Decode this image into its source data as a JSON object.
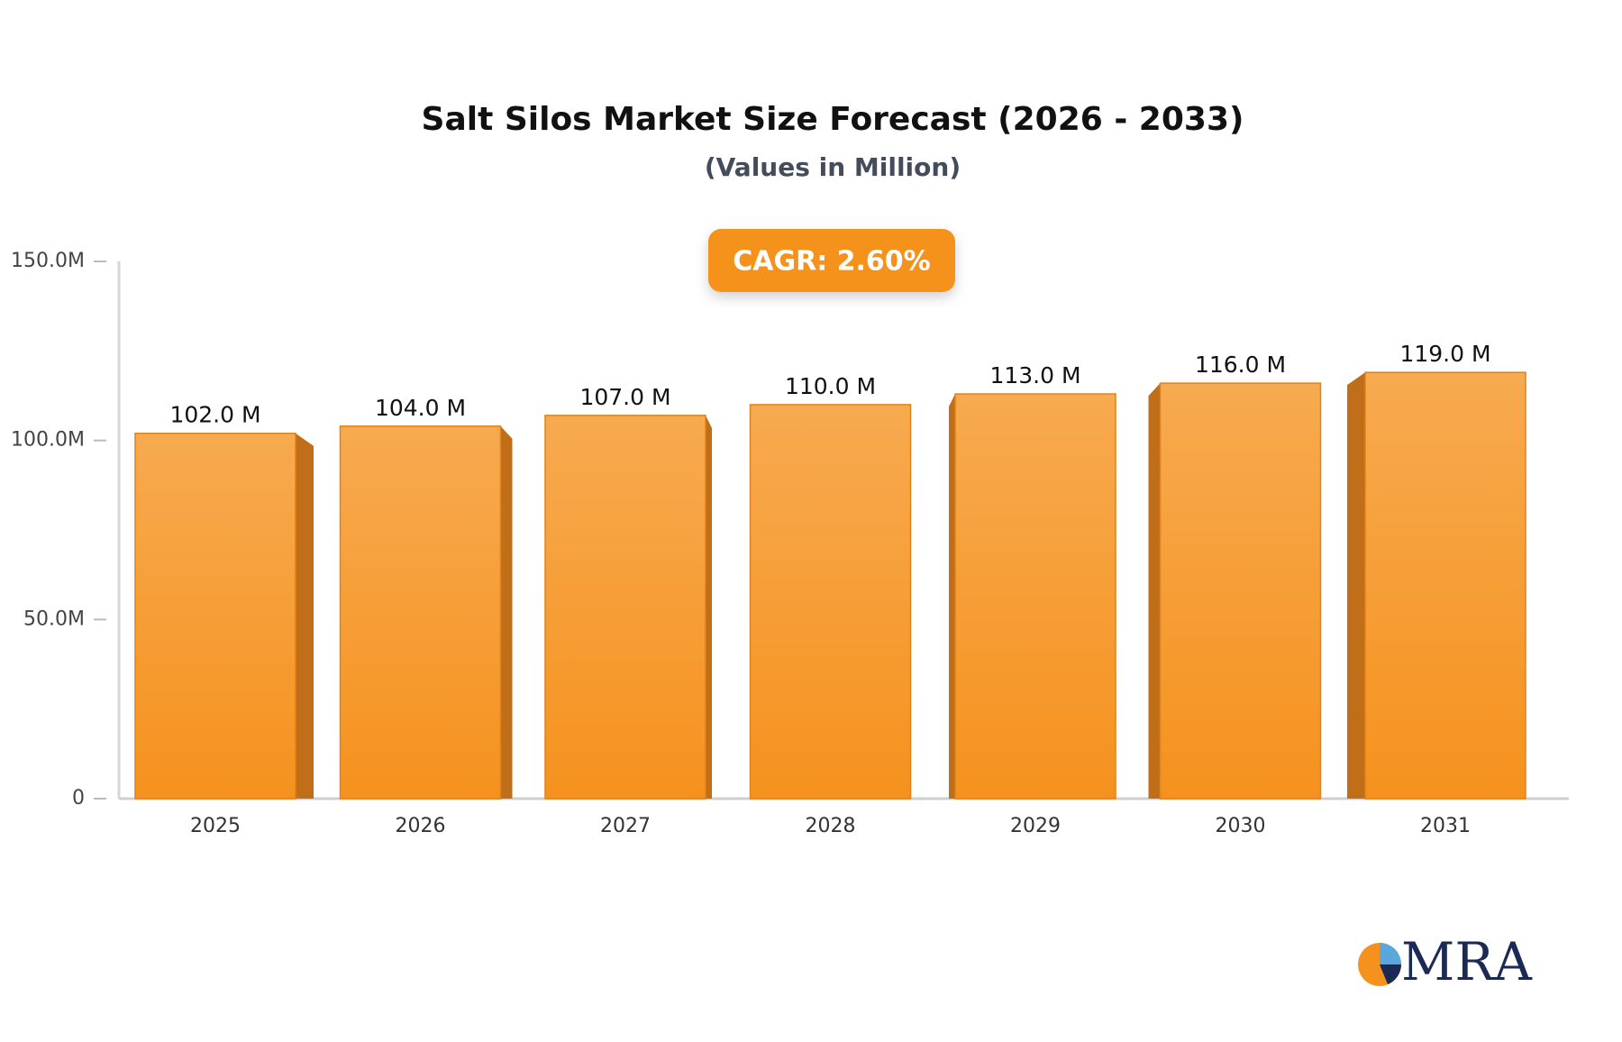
{
  "chart_data": {
    "type": "bar",
    "title": "Salt Silos Market Size Forecast (2026 - 2033)",
    "subtitle": "(Values in Million)",
    "annotation": "CAGR: 2.60%",
    "logo": "MRA",
    "categories": [
      "2025",
      "2026",
      "2027",
      "2028",
      "2029",
      "2030",
      "2031"
    ],
    "values": [
      102,
      104,
      107,
      110,
      113,
      116,
      119
    ],
    "value_labels": [
      "102.0 M",
      "104.0 M",
      "107.0 M",
      "110.0 M",
      "113.0 M",
      "116.0 M",
      "119.0 M"
    ],
    "color": "#f5921e",
    "ylim": [
      0,
      150
    ],
    "yticks": [
      0,
      {
        "value": 50,
        "label": "50.0M"
      },
      {
        "value": 100,
        "label": "100.0M"
      },
      {
        "value": 150,
        "label": "150.0M"
      }
    ]
  }
}
